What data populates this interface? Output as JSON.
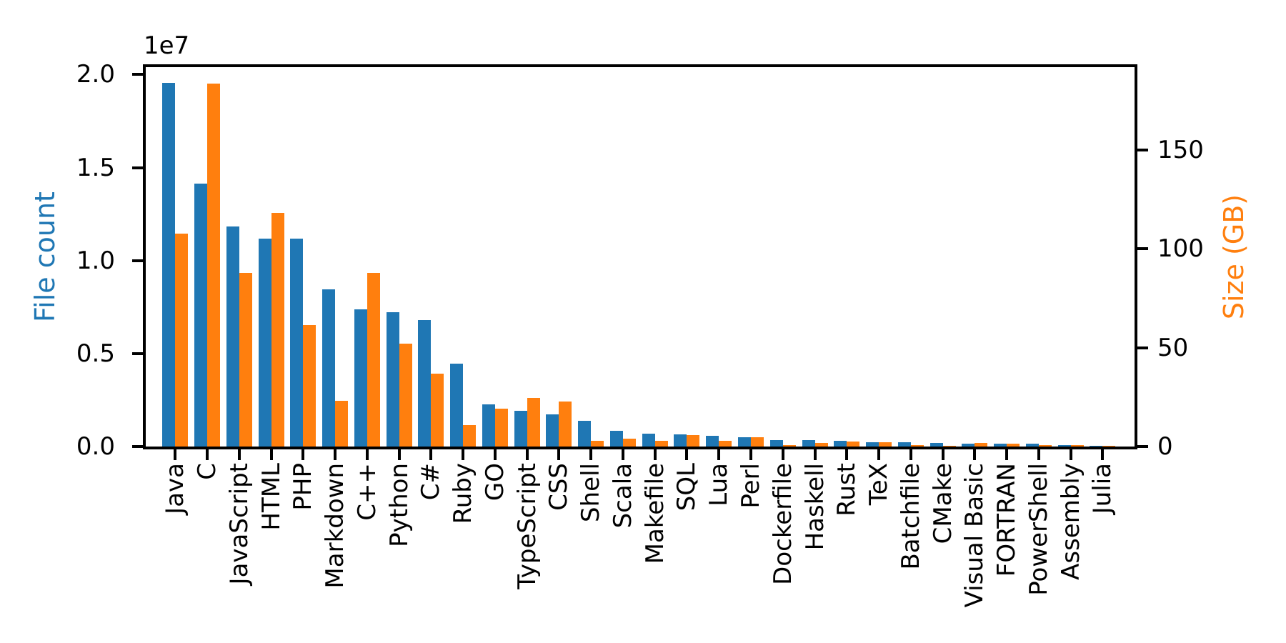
{
  "chart_data": {
    "type": "bar",
    "title": "",
    "categories": [
      "Java",
      "C",
      "JavaScript",
      "HTML",
      "PHP",
      "Markdown",
      "C++",
      "Python",
      "C#",
      "Ruby",
      "GO",
      "TypeScript",
      "CSS",
      "Shell",
      "Scala",
      "Makefile",
      "SQL",
      "Lua",
      "Perl",
      "Dockerfile",
      "Haskell",
      "Rust",
      "TeX",
      "Batchfile",
      "CMake",
      "Visual Basic",
      "FORTRAN",
      "PowerShell",
      "Assembly",
      "Julia"
    ],
    "series": [
      {
        "name": "File count",
        "axis": "left",
        "color": "#1f77b4",
        "values": [
          19548190,
          14143113,
          11839883,
          11178557,
          11177610,
          8464626,
          7380520,
          7226626,
          6811652,
          4473331,
          2265436,
          1940406,
          1734406,
          1385648,
          835755,
          679430,
          656671,
          578554,
          497949,
          366505,
          340318,
          322431,
          251015,
          236945,
          175282,
          155652,
          142038,
          136846,
          82905,
          58317
        ]
      },
      {
        "name": "Size (GB)",
        "axis": "right",
        "color": "#ff7f0e",
        "values": [
          107.7,
          183.83,
          87.82,
          118.12,
          61.41,
          23.09,
          87.73,
          52.03,
          36.83,
          10.95,
          19.28,
          24.59,
          22.67,
          3.01,
          3.87,
          2.92,
          5.67,
          2.81,
          4.7,
          0.71,
          1.85,
          2.68,
          2.15,
          0.7,
          0.54,
          1.91,
          1.62,
          0.69,
          0.78,
          0.29
        ]
      }
    ],
    "left_axis": {
      "label": "File count",
      "color": "#1f77b4",
      "offset_label": "1e7",
      "tick_labels": [
        "0.0",
        "0.5",
        "1.0",
        "1.5",
        "2.0"
      ],
      "tick_values": [
        0,
        5000000,
        10000000,
        15000000,
        20000000
      ],
      "range": [
        0,
        20400000
      ]
    },
    "right_axis": {
      "label": "Size (GB)",
      "color": "#ff7f0e",
      "tick_labels": [
        "0",
        "50",
        "100",
        "150"
      ],
      "tick_values": [
        0,
        50,
        100,
        150
      ],
      "range": [
        0,
        192
      ]
    },
    "x_axis": {
      "tick_label_rotation": 90
    },
    "grid": false,
    "legend": false,
    "background": "#ffffff",
    "spine_color": "#000000"
  }
}
